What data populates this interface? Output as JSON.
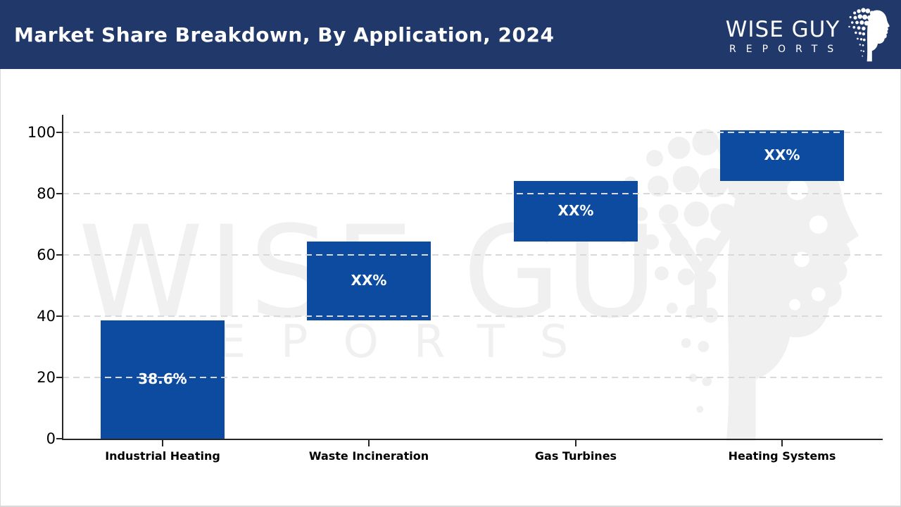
{
  "header": {
    "title": "Market Share Breakdown, By Application, 2024",
    "brand": {
      "name": "WISE GUY",
      "tagline": "REPORTS"
    }
  },
  "watermark": {
    "line1": "WISE GUY",
    "line2": "REPORTS"
  },
  "chart_data": {
    "type": "bar",
    "variant": "floating-waterfall",
    "title": "Market Share Breakdown, By Application, 2024",
    "categories": [
      "Industrial Heating",
      "Waste Incineration",
      "Gas Turbines",
      "Heating Systems"
    ],
    "series": [
      {
        "name": "Market share (%)",
        "segments": [
          {
            "category": "Industrial Heating",
            "start": 0,
            "end": 38.6,
            "label": "38.6%"
          },
          {
            "category": "Waste Incineration",
            "start": 38.6,
            "end": 64.4,
            "label": "XX%"
          },
          {
            "category": "Gas Turbines",
            "start": 64.4,
            "end": 84.2,
            "label": "XX%"
          },
          {
            "category": "Heating Systems",
            "start": 84.2,
            "end": 100.8,
            "label": "XX%"
          }
        ]
      }
    ],
    "xlabel": "",
    "ylabel": "",
    "ylim": [
      0,
      105
    ],
    "yticks": [
      0,
      20,
      40,
      60,
      80,
      100
    ],
    "grid": "horizontal-dashed",
    "gridlines_above_bars": true,
    "legend_position": "none",
    "colors": {
      "bar": "#0c4ba0",
      "bar_label": "#ffffff",
      "header_bg": "#21396a",
      "gridline": "#d9d9d9",
      "axis": "#262626",
      "watermark": "#f0f0f1"
    }
  }
}
